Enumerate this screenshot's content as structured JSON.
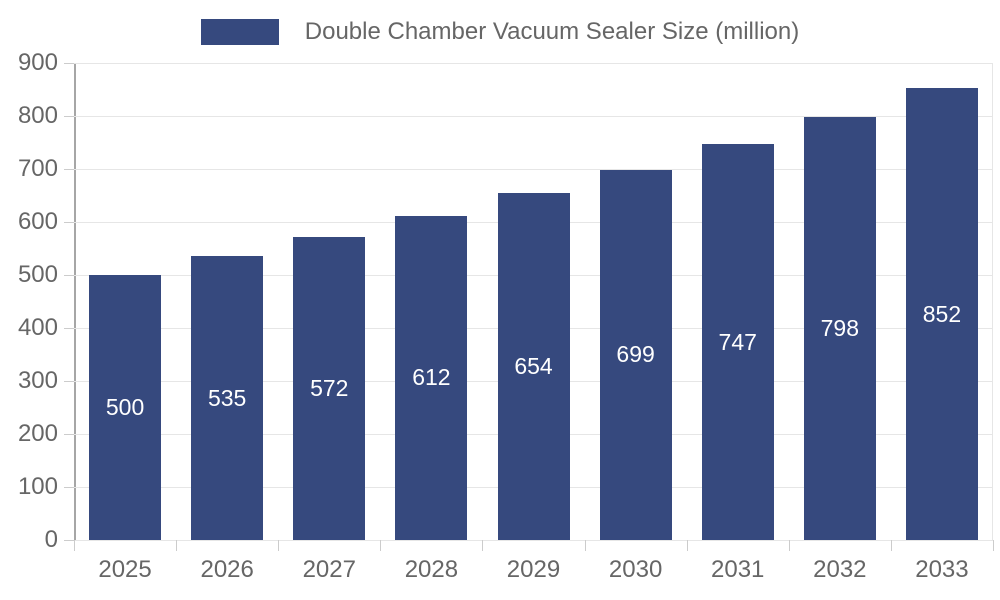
{
  "chart_data": {
    "type": "bar",
    "title": "",
    "legend": "Double Chamber Vacuum Sealer Size (million)",
    "legend_position": "top",
    "categories": [
      "2025",
      "2026",
      "2027",
      "2028",
      "2029",
      "2030",
      "2031",
      "2032",
      "2033"
    ],
    "series": [
      {
        "name": "Double Chamber Vacuum Sealer Size (million)",
        "values": [
          500,
          535,
          572,
          612,
          654,
          699,
          747,
          798,
          852
        ]
      }
    ],
    "value_labels_shown": true,
    "xlabel": "",
    "ylabel": "",
    "ylim": [
      0,
      900
    ],
    "yticks": [
      0,
      100,
      200,
      300,
      400,
      500,
      600,
      700,
      800,
      900
    ],
    "grid": true,
    "colors": {
      "bar": "#36497E",
      "grid": "#E6E6E6",
      "axis_line": "#A6A6A6",
      "tick": "#CCCCCC",
      "axis_text": "#666666",
      "legend_text": "#666666",
      "value_label": "#FFFFFF",
      "background": "#FFFFFF"
    }
  }
}
